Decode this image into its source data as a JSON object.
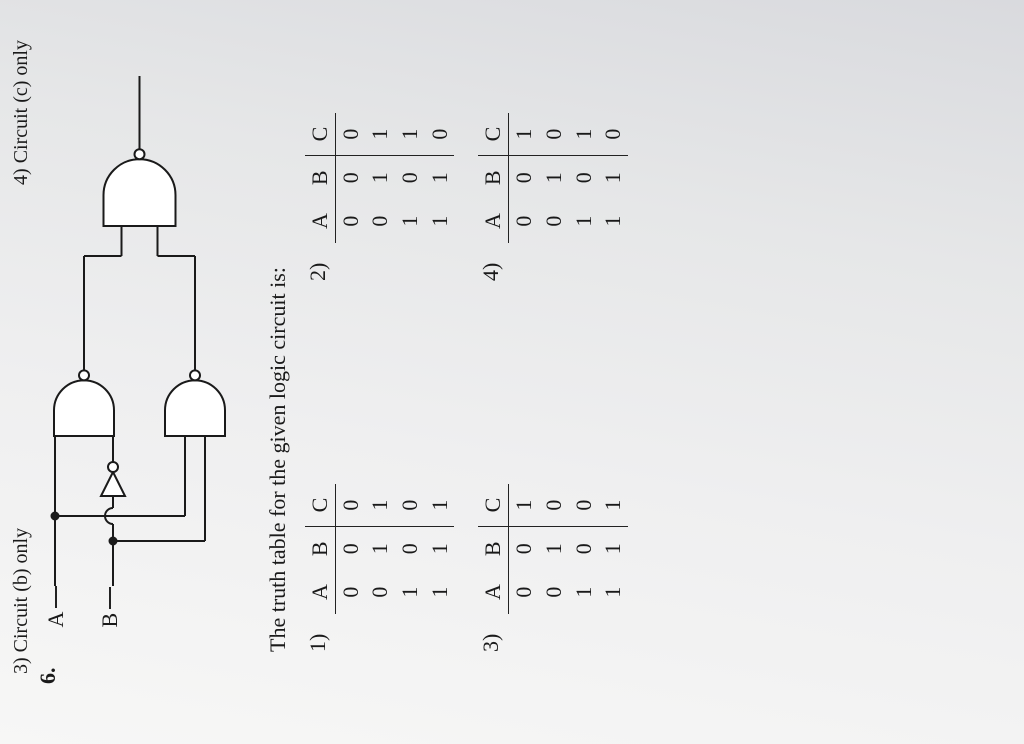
{
  "top": {
    "left": "3) Circuit (b) only",
    "right": "4) Circuit (c) only"
  },
  "question": {
    "number": "6.",
    "inputA": "A",
    "inputB": "B"
  },
  "prompt": "The truth table for the given logic circuit is:",
  "circuit": {
    "stroke": "#1a1a1a",
    "stroke_width": 2,
    "fill": "#ffffff"
  },
  "tables": {
    "columns": [
      "A",
      "B",
      "C"
    ],
    "out_index": 2,
    "options": [
      {
        "label": "1)",
        "rows": [
          [
            0,
            0,
            0
          ],
          [
            0,
            1,
            1
          ],
          [
            1,
            0,
            0
          ],
          [
            1,
            1,
            1
          ]
        ]
      },
      {
        "label": "2)",
        "rows": [
          [
            0,
            0,
            0
          ],
          [
            0,
            1,
            1
          ],
          [
            1,
            0,
            1
          ],
          [
            1,
            1,
            0
          ]
        ]
      },
      {
        "label": "3)",
        "rows": [
          [
            0,
            0,
            1
          ],
          [
            0,
            1,
            0
          ],
          [
            1,
            0,
            0
          ],
          [
            1,
            1,
            1
          ]
        ]
      },
      {
        "label": "4)",
        "rows": [
          [
            0,
            0,
            1
          ],
          [
            0,
            1,
            0
          ],
          [
            1,
            0,
            1
          ],
          [
            1,
            1,
            0
          ]
        ]
      }
    ]
  }
}
